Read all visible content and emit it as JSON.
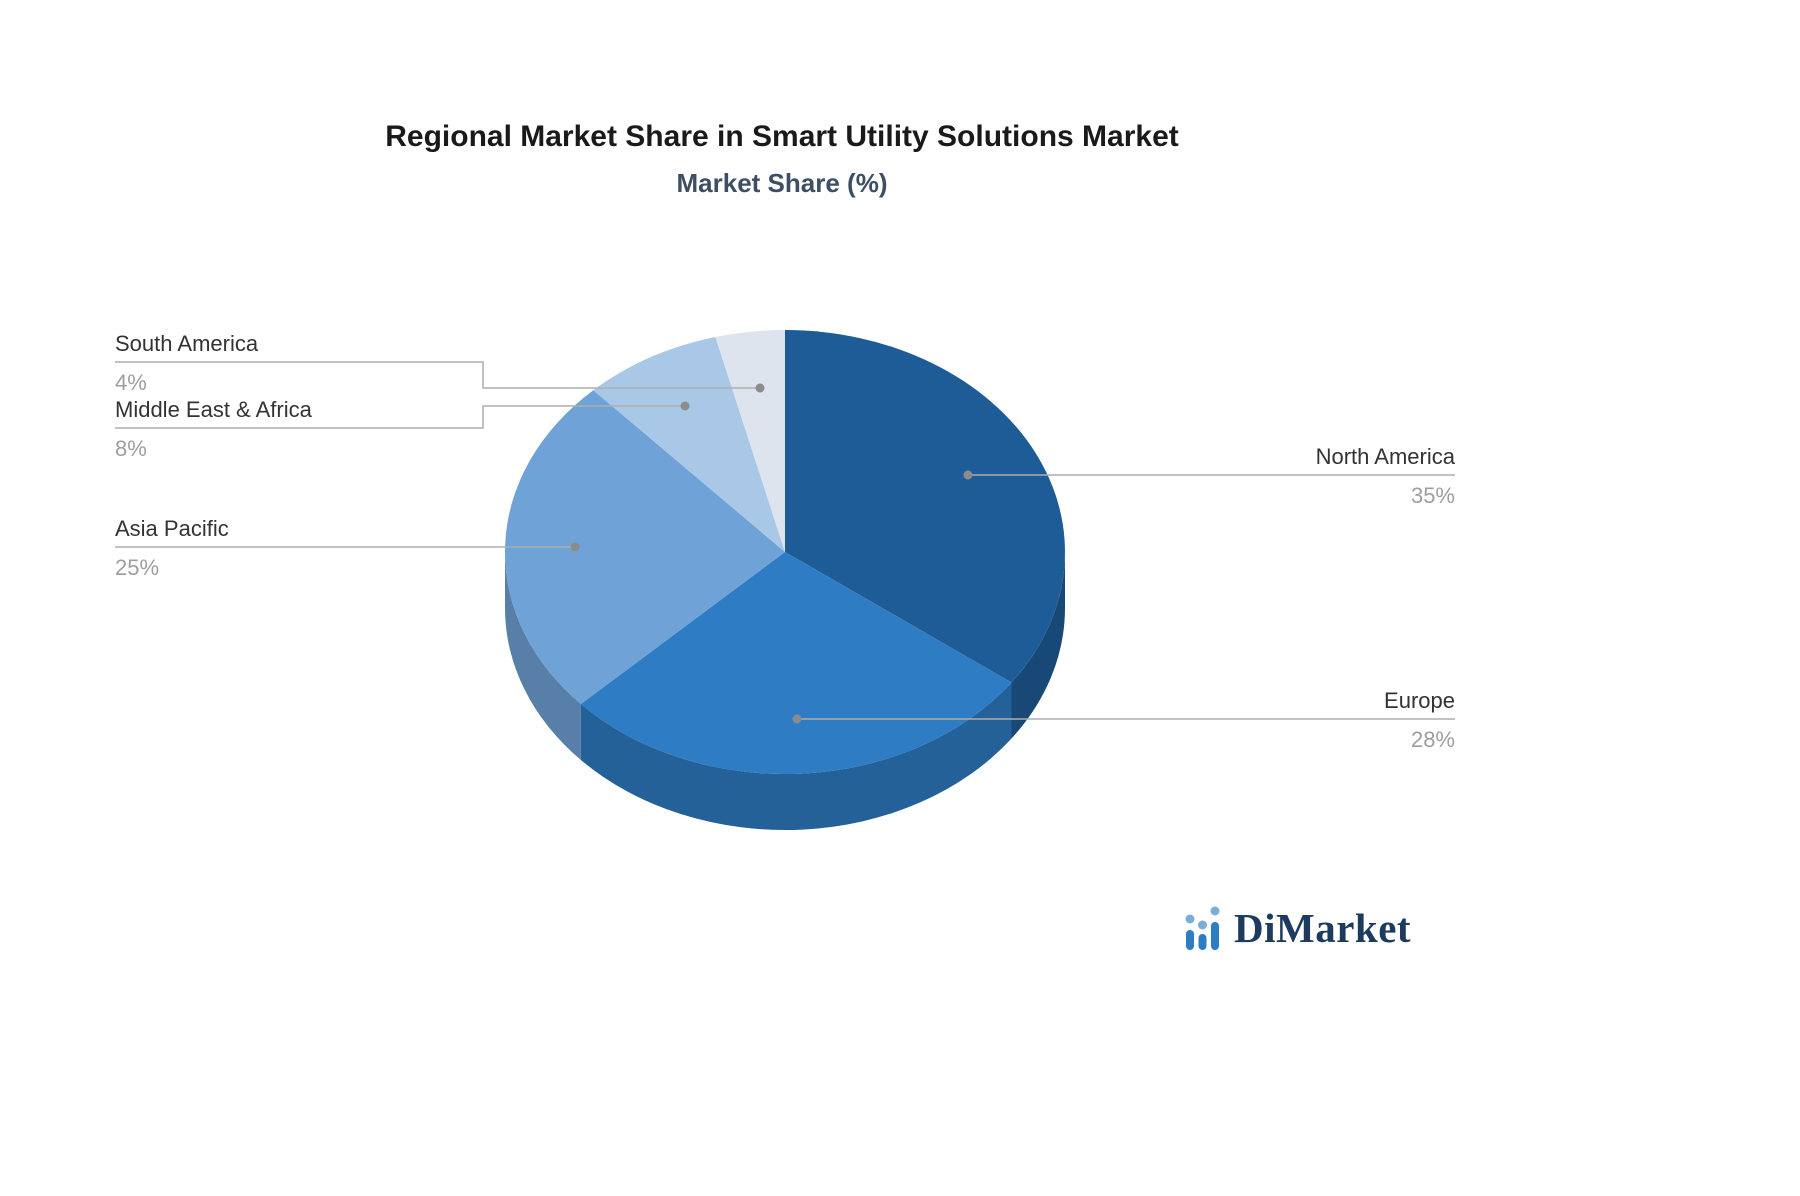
{
  "page": {
    "background_color": "#ffffff"
  },
  "chart_data": {
    "type": "pie",
    "effect": "3d",
    "title": "Regional Market Share in Smart Utility Solutions Market",
    "subtitle": "Market Share (%)",
    "unit": "%",
    "legend_position": "none",
    "label_style": "callout-leader-lines",
    "slices": [
      {
        "label": "North America",
        "value": 35,
        "display": "35%",
        "color": "#1e5c97"
      },
      {
        "label": "Europe",
        "value": 28,
        "display": "28%",
        "color": "#2e7cc3"
      },
      {
        "label": "Asia Pacific",
        "value": 25,
        "display": "25%",
        "color": "#6fa3d7"
      },
      {
        "label": "Middle East & Africa",
        "value": 8,
        "display": "8%",
        "color": "#a9c7e6"
      },
      {
        "label": "South America",
        "value": 4,
        "display": "4%",
        "color": "#dde4ee"
      }
    ],
    "leader_line_color": "#aeaeae",
    "leader_dot_color": "#8c8c8c",
    "label_name_color": "#333333",
    "label_value_color": "#9e9e9e"
  },
  "branding": {
    "logo_text": "DiMarket",
    "logo_icon": "bar-chart-icon",
    "logo_text_color": "#1d3a5f",
    "logo_icon_color": "#2e7cc3",
    "logo_icon_accent_color": "#7badd9"
  }
}
